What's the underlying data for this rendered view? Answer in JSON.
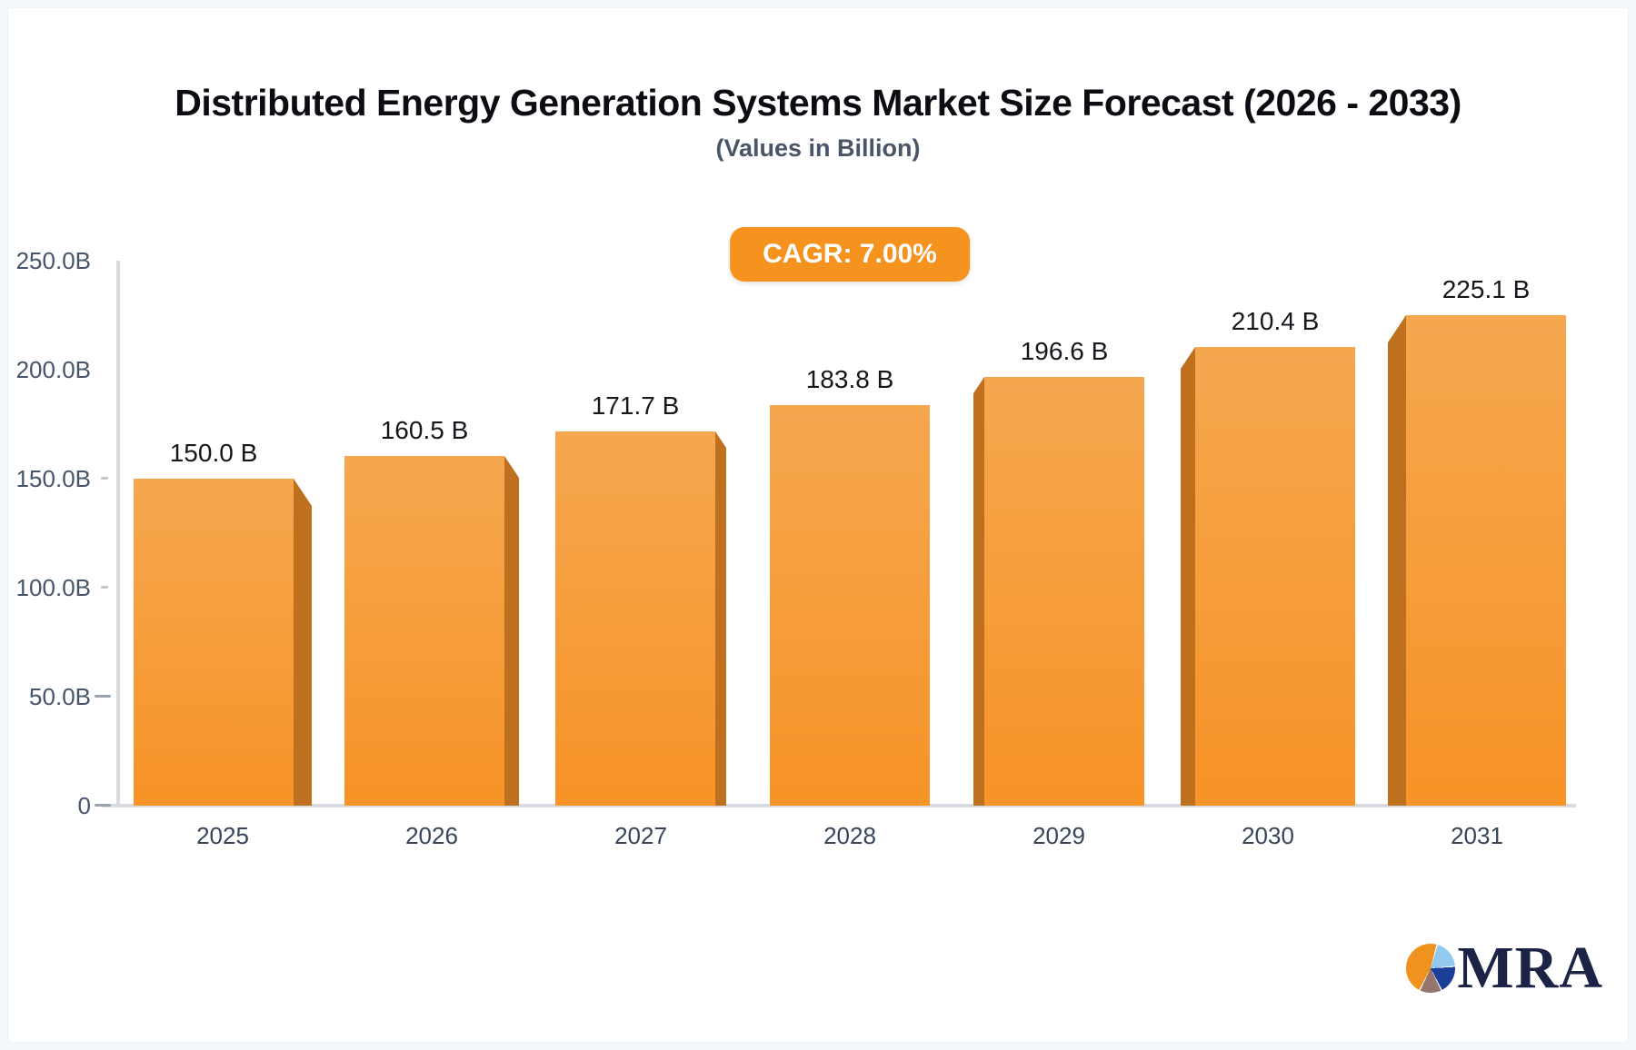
{
  "header": {
    "title": "Distributed Energy Generation Systems Market Size Forecast (2026 - 2033)",
    "subtitle": "(Values in Billion)"
  },
  "badge": {
    "label": "CAGR: 7.00%",
    "bg_color": "#F6921E",
    "text_color": "#FFFFFF"
  },
  "chart_data": {
    "type": "bar",
    "title": "Distributed Energy Generation Systems Market Size Forecast (2026 - 2033)",
    "subtitle": "(Values in Billion)",
    "unit": "Billion",
    "cagr": "7.00%",
    "categories": [
      "2025",
      "2026",
      "2027",
      "2028",
      "2029",
      "2030",
      "2031"
    ],
    "values": [
      150.0,
      160.5,
      171.7,
      183.8,
      196.6,
      210.4,
      225.1
    ],
    "value_labels": [
      "150.0 B",
      "160.5 B",
      "171.7 B",
      "183.8 B",
      "196.6 B",
      "210.4 B",
      "225.1 B"
    ],
    "ylim": [
      0,
      250
    ],
    "yticks": [
      {
        "label": "250.0B",
        "value": 250
      },
      {
        "label": "200.0B",
        "value": 200
      },
      {
        "label": "150.0B",
        "value": 150
      },
      {
        "label": "100.0B",
        "value": 100
      },
      {
        "label": "50.0B",
        "value": 50
      },
      {
        "label": "0",
        "value": 0
      }
    ],
    "grid": false,
    "legend": false,
    "effect": "pseudo-3d bars, perspective toward center",
    "bar_face_color_top": "#F5A74F",
    "bar_face_color_bottom": "#F79327",
    "bar_side_color": "#BF701F",
    "axis_color": "#D8DCE1"
  },
  "logo": {
    "text": "MRA",
    "pie_colors": {
      "orange": "#F0921E",
      "light_blue": "#92C9EF",
      "navy": "#1C3F97",
      "mauve": "#96756E"
    }
  }
}
